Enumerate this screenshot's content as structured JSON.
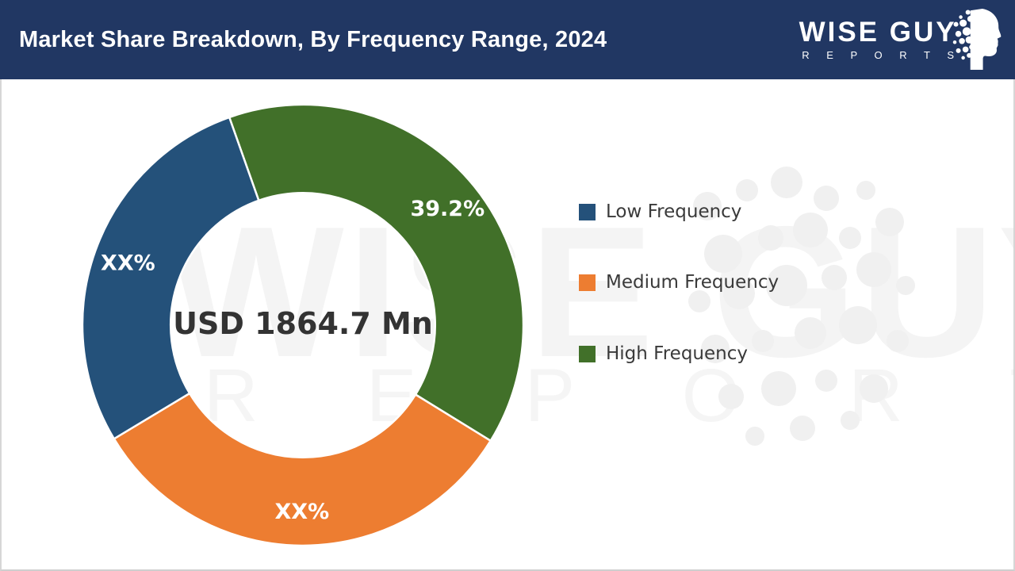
{
  "header": {
    "title": "Market Share Breakdown, By Frequency Range, 2024",
    "bg_color": "#213763",
    "logo": {
      "line1": "WISE GUY",
      "line2": "R E P O R T S"
    }
  },
  "watermark": {
    "line1": "WISE GUY",
    "line2": "R E P O R T S"
  },
  "chart_data": {
    "type": "pie",
    "subtype": "donut",
    "title": "Market Share Breakdown, By Frequency Range, 2024",
    "center_label": "USD 1864.7 Mn",
    "start_angle_deg": -19.5,
    "inner_radius_ratio": 0.6,
    "label_radius_ratio": 0.843,
    "slices": [
      {
        "name": "High Frequency",
        "value_pct": 39.2,
        "label": "39.2%",
        "color": "#417029"
      },
      {
        "name": "Medium Frequency",
        "value_pct": 32.6,
        "label": "XX%",
        "color": "#ED7D31"
      },
      {
        "name": "Low Frequency",
        "value_pct": 28.2,
        "label": "XX%",
        "color": "#24517A"
      }
    ],
    "legend": [
      {
        "label": "Low Frequency",
        "color": "#24517A"
      },
      {
        "label": "Medium Frequency",
        "color": "#ED7D31"
      },
      {
        "label": "High Frequency",
        "color": "#417029"
      }
    ],
    "legend_position": "right"
  }
}
